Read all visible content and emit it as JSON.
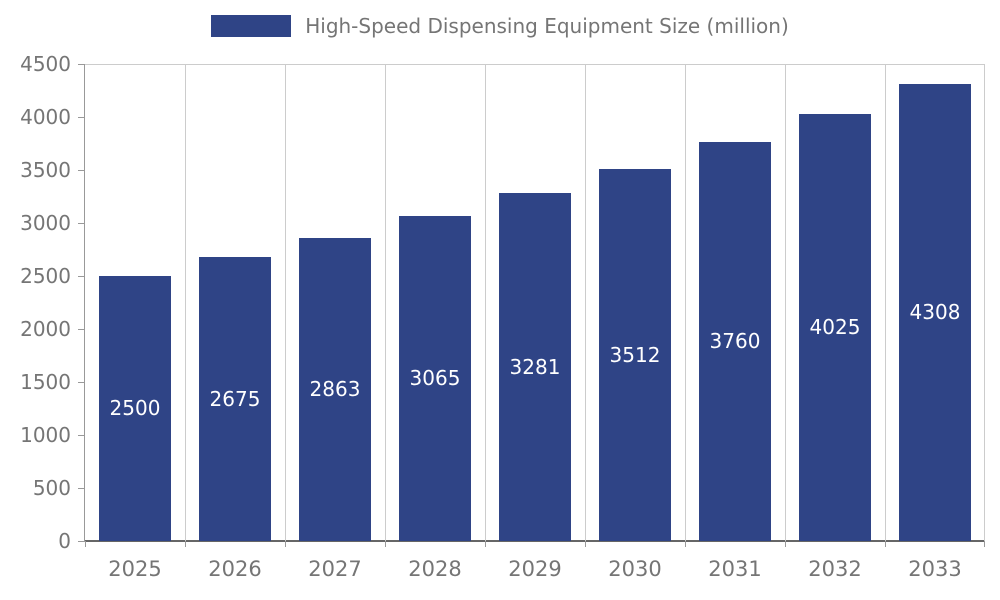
{
  "chart_data": {
    "type": "bar",
    "title": "High-Speed Dispensing Equipment Size (million)",
    "categories": [
      "2025",
      "2026",
      "2027",
      "2028",
      "2029",
      "2030",
      "2031",
      "2032",
      "2033"
    ],
    "values": [
      2500,
      2675,
      2863,
      3065,
      3281,
      3512,
      3760,
      4025,
      4308
    ],
    "xlabel": "",
    "ylabel": "",
    "ylim": [
      0,
      4500
    ],
    "ytick_step": 500,
    "ytick_labels": [
      "0",
      "500",
      "1000",
      "1500",
      "2000",
      "2500",
      "3000",
      "3500",
      "4000",
      "4500"
    ],
    "grid": "vertical",
    "legend_position": "top",
    "colors": {
      "bar": "#2F4486",
      "value_label": "#ffffff",
      "axis_text": "#757575",
      "gridline": "#cccccc",
      "axis_line": "#666666"
    }
  }
}
